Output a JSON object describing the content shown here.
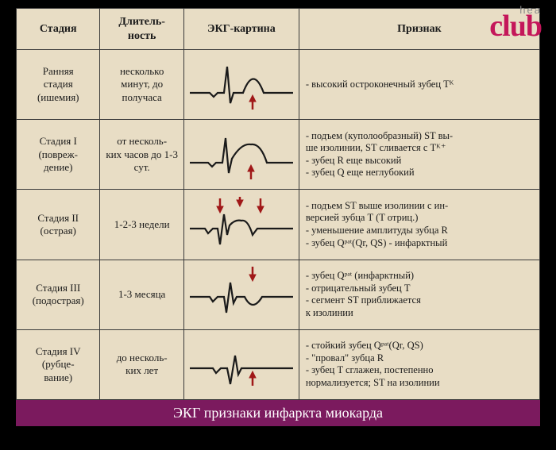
{
  "logo": {
    "top": "hea",
    "main": "club"
  },
  "headers": {
    "stage": "Стадия",
    "duration": "Длитель-\nность",
    "ecg": "ЭКГ-картина",
    "signs": "Признак"
  },
  "rows": [
    {
      "stage_main": "Ранняя",
      "stage_l2": "стадия",
      "stage_sub": "(ишемия)",
      "duration": "несколько минут, до получаса",
      "ecg_type": "early",
      "signs": [
        "- высокий остроконечный зубец Tᴷ"
      ]
    },
    {
      "stage_main": "Стадия I",
      "stage_l2": "",
      "stage_sub": "(повреж-\nдение)",
      "duration": "от несколь-\nких часов до 1-3 сут.",
      "ecg_type": "stage1",
      "signs": [
        "- подъем (куполообразный) ST вы-",
        "  ше изолинии, ST сливается с Tᴷ⁺",
        "- зубец R еще высокий",
        "- зубец Q еще неглубокий"
      ]
    },
    {
      "stage_main": "Стадия II",
      "stage_l2": "",
      "stage_sub": "(острая)",
      "duration": "1-2-3 недели",
      "ecg_type": "stage2",
      "signs": [
        "- подъем ST выше изолинии с ин-",
        "  версией зубца T (T отриц.)",
        "- уменьшение амплитуды зубца R",
        "- зубец Qᵖᵃᵗ(Qr, QS) - инфарктный"
      ]
    },
    {
      "stage_main": "Стадия III",
      "stage_l2": "",
      "stage_sub": "(подострая)",
      "duration": "1-3 месяца",
      "ecg_type": "stage3",
      "signs": [
        "- зубец Qᵖᵃᵗ (инфарктный)",
        "- отрицательный зубец T",
        "- сегмент ST приближается",
        "  к изолинии"
      ]
    },
    {
      "stage_main": "Стадия IV",
      "stage_l2": "",
      "stage_sub": "(рубце-\nвание)",
      "duration": "до несколь-\nких лет",
      "ecg_type": "stage4",
      "signs": [
        "- стойкий зубец Qᵖᵃᵗ(Qr, QS)",
        "- \"провал\" зубца R",
        "- зубец T сглажен, постепенно",
        "  нормализуется; ST на изолинии"
      ]
    }
  ],
  "footer": "ЭКГ признаки инфаркта миокарда",
  "colors": {
    "page_bg": "#e8ddc5",
    "border": "#3a3a3a",
    "text": "#1a1a1a",
    "footer_bg": "#7b1a5e",
    "footer_text": "#ffffff",
    "arrow": "#a01818",
    "logo": "#c4165a"
  }
}
